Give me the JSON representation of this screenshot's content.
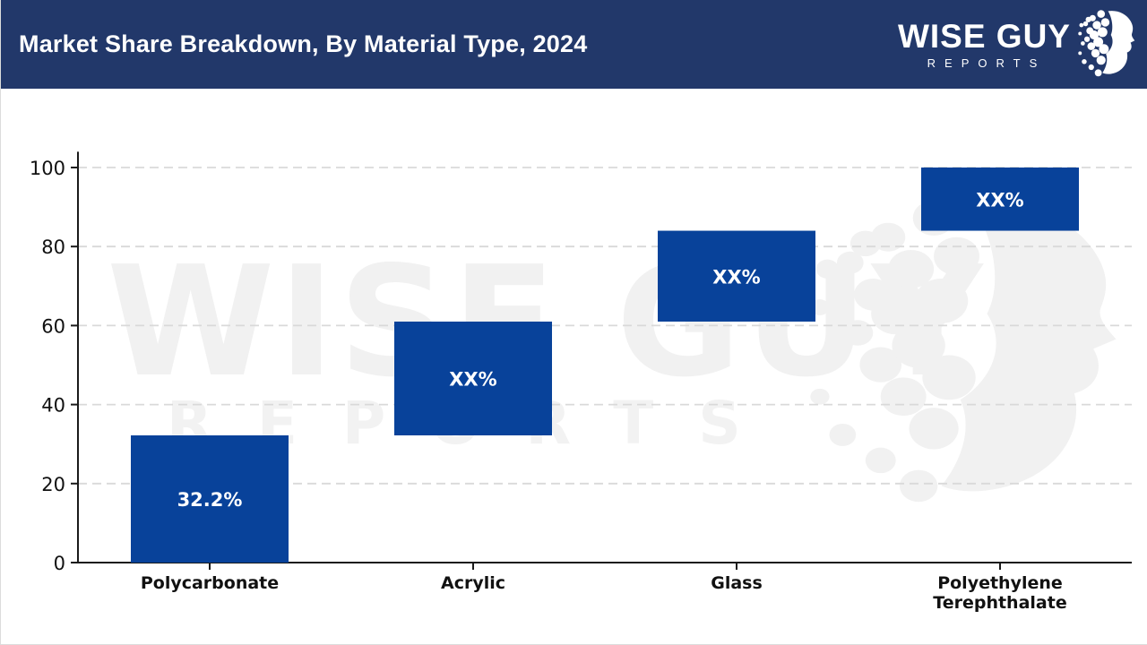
{
  "header": {
    "title": "Market Share Breakdown, By Material Type, 2024",
    "logo": {
      "wordmark": "WISE GUY",
      "subtitle": "REPORTS"
    }
  },
  "watermark": {
    "wordmark": "WISE GUY",
    "subtitle": "REPORTS"
  },
  "colors": {
    "header_bg": "#22386a",
    "bar": "#08429a",
    "bar_label": "#ffffff",
    "grid": "#d9d9d9",
    "axis": "#1a1a1a",
    "text": "#111111",
    "watermark": "#f1f1f1"
  },
  "chart_data": {
    "type": "bar",
    "subtype": "waterfall",
    "title": "Market Share Breakdown, By Material Type, 2024",
    "categories": [
      "Polycarbonate",
      "Acrylic",
      "Glass",
      "Polyethylene Terephthalate"
    ],
    "category_label_lines": [
      [
        "Polycarbonate"
      ],
      [
        "Acrylic"
      ],
      [
        "Glass"
      ],
      [
        "Polyethylene",
        "Terephthalate"
      ]
    ],
    "segments": [
      {
        "category": "Polycarbonate",
        "start": 0,
        "end": 32.2,
        "label": "32.2%"
      },
      {
        "category": "Acrylic",
        "start": 32.2,
        "end": 61,
        "label": "XX%"
      },
      {
        "category": "Glass",
        "start": 61,
        "end": 84,
        "label": "XX%"
      },
      {
        "category": "Polyethylene Terephthalate",
        "start": 84,
        "end": 100,
        "label": "XX%"
      }
    ],
    "yticks": [
      0,
      20,
      40,
      60,
      80,
      100
    ],
    "ylim": [
      0,
      104
    ],
    "xlabel": "",
    "ylabel": "",
    "grid": "horizontal-dashed",
    "legend": "none"
  }
}
